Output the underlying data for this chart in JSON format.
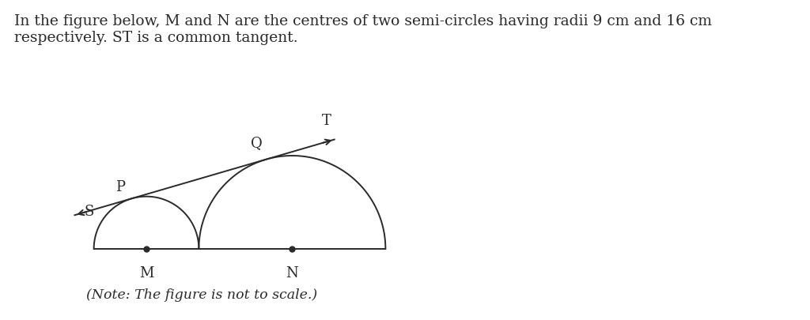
{
  "title_text": "In the figure below, M and N are the centres of two semi-circles having radii 9 cm and 16 cm\nrespectively. ST is a common tangent.",
  "note_text": "(Note: The figure is not to scale.)",
  "title_fontsize": 13.5,
  "note_fontsize": 12.5,
  "bg_color": "#ffffff",
  "line_color": "#2a2a2a",
  "r_M": 9,
  "r_N": 16,
  "label_M": "M",
  "label_N": "N",
  "label_P": "P",
  "label_Q": "Q",
  "label_S": "S",
  "label_T": "T",
  "lw": 1.4
}
